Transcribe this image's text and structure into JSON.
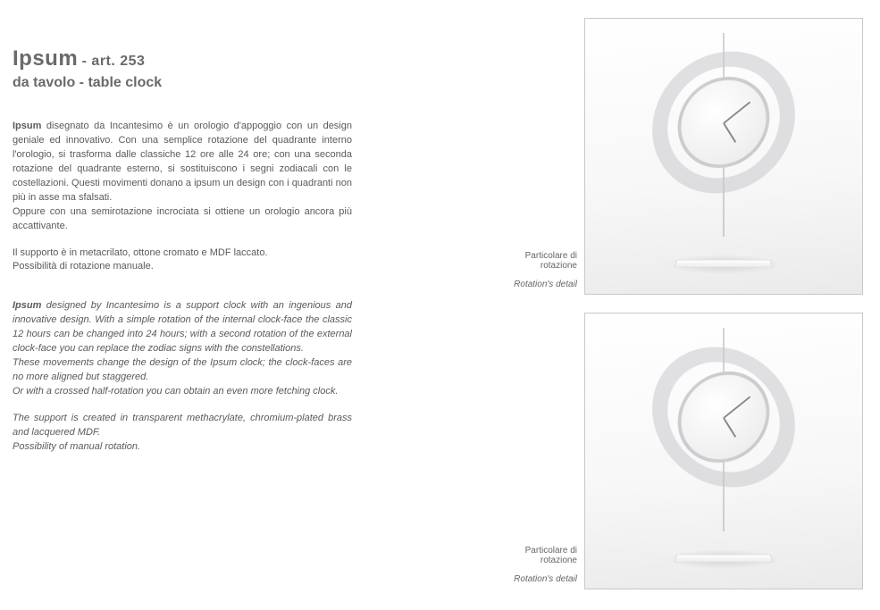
{
  "title": {
    "main": "Ipsum",
    "suffix": "- art. 253",
    "subtitle": "da tavolo - table clock"
  },
  "italian": {
    "p1_bold": "Ipsum",
    "p1": " disegnato da Incantesimo è un orologio d'appoggio con un design geniale ed innovativo. Con una semplice rotazione del quadrante interno l'orologio, si trasforma dalle classiche 12 ore alle 24 ore; con una seconda rotazione del quadrante esterno, si sostituiscono i segni zodiacali con le costellazioni. Questi movimenti donano a ipsum un design con i quadranti non più in asse ma sfalsati.",
    "p2": "Oppure con una semirotazione incrociata si ottiene un orologio ancora più accattivante.",
    "p3": "Il supporto è in metacrilato, ottone cromato e MDF laccato.",
    "p4": "Possibilità di rotazione manuale."
  },
  "english": {
    "p1_bold": "Ipsum",
    "p1": " designed by Incantesimo is a support clock with an ingenious and innovative design. With a simple rotation of the internal clock-face the classic 12 hours can be changed into 24 hours; with a second rotation of the external clock-face you can replace the zodiac signs with the constellations.",
    "p2": "These movements change the design of the Ipsum clock; the clock-faces are no more aligned but staggered.",
    "p3": "Or with a crossed half-rotation you can obtain an even more fetching clock.",
    "p4": "The support is created in transparent methacrylate, chromium-plated brass and lacquered MDF.",
    "p5": "Possibility of manual rotation."
  },
  "captions": {
    "it": "Particolare di rotazione",
    "en": "Rotation's detail"
  },
  "style": {
    "border_color": "#c8c8c8",
    "text_color": "#5f5f5f",
    "heading_color": "#6a6a6a",
    "background": "#ffffff"
  }
}
